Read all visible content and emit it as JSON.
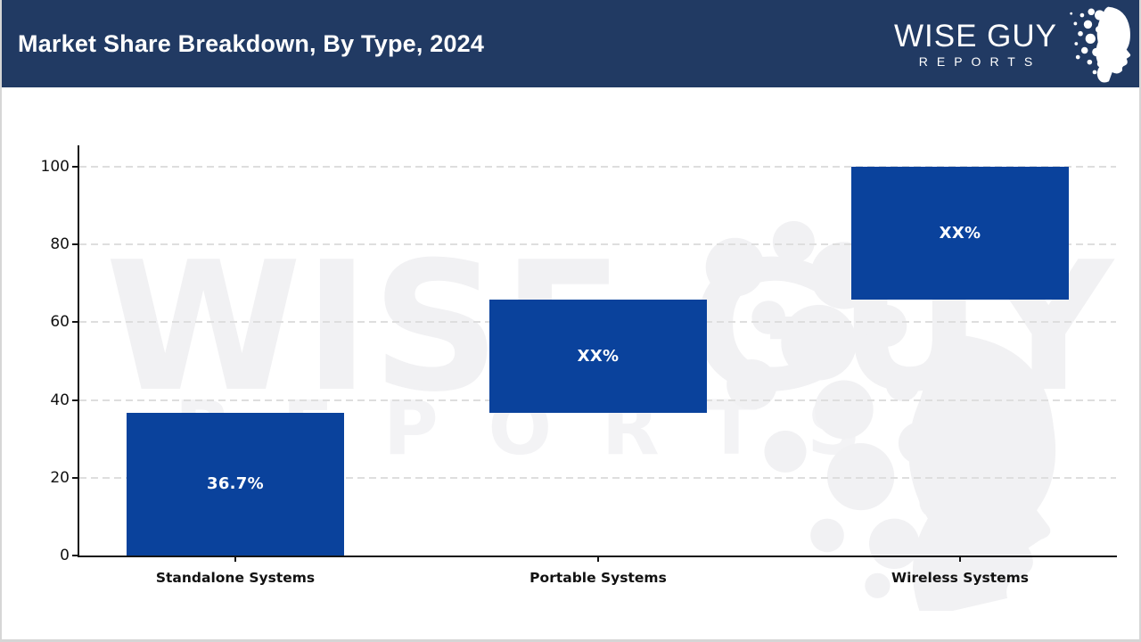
{
  "header": {
    "title": "Market Share Breakdown, By Type, 2024",
    "bg_color": "#213A63",
    "logo": {
      "line1": "WISE GUY",
      "line2": "REPORTS",
      "icon": "dotted-face-profile-icon",
      "color": "#FFFFFF"
    }
  },
  "watermark": {
    "line1": "WISE GUY",
    "line2": "REPORTS",
    "icon": "dotted-face-profile-watermark",
    "color": "#F1F1F3"
  },
  "chart_data": {
    "type": "bar",
    "subtype": "waterfall",
    "title": "Market Share Breakdown, By Type, 2024",
    "categories": [
      "Standalone Systems",
      "Portable Systems",
      "Wireless Systems"
    ],
    "segments": [
      {
        "category": "Standalone Systems",
        "start": 0,
        "end": 36.7,
        "label": "36.7%"
      },
      {
        "category": "Portable Systems",
        "start": 36.7,
        "end": 65.9,
        "label": "XX%"
      },
      {
        "category": "Wireless Systems",
        "start": 65.9,
        "end": 100,
        "label": "XX%"
      }
    ],
    "yticks": [
      0,
      20,
      40,
      60,
      80,
      100
    ],
    "ylim": [
      0,
      105
    ],
    "xlabel": "",
    "ylabel": "",
    "grid": "horizontal-dashed",
    "legend": "none",
    "bar_color": "#0A429C",
    "bar_label_color": "#FFFFFF",
    "axis_color": "#151515",
    "grid_color": "#DEDEDE"
  }
}
